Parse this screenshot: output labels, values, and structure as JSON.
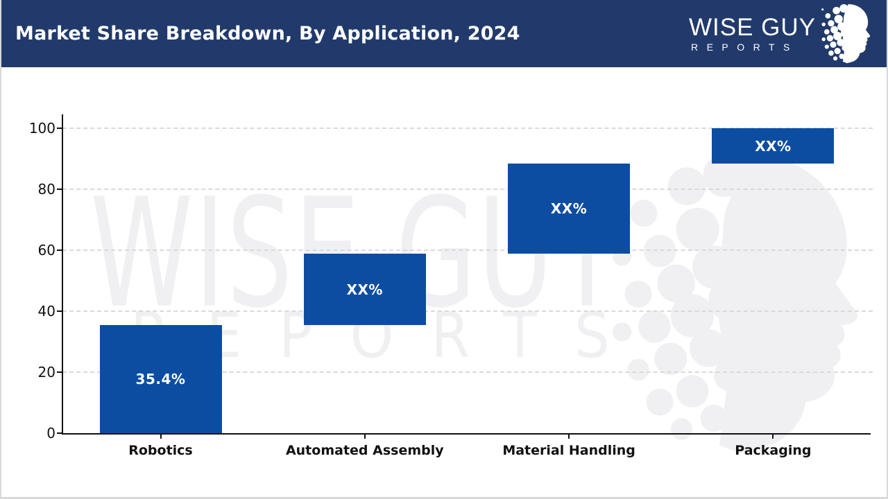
{
  "header": {
    "title": "Market Share Breakdown, By Application, 2024"
  },
  "logo": {
    "wordmark": "WISE GUY",
    "subtitle": "REPORTS"
  },
  "watermark": {
    "wordmark": "WISE GUY",
    "subtitle": "REPORTS"
  },
  "colors": {
    "header_bg": "#213a6b",
    "bar": "#0d4da1",
    "gridline": "#d9d9d9",
    "axis": "#111111",
    "watermark": "#f0f0f2"
  },
  "chart_data": {
    "type": "bar",
    "subtype": "waterfall",
    "title": "Market Share Breakdown, By Application, 2024",
    "categories": [
      "Robotics",
      "Automated Assembly",
      "Material Handling",
      "Packaging"
    ],
    "segments": [
      {
        "category": "Robotics",
        "label": "35.4%",
        "start": 0,
        "end": 35.4
      },
      {
        "category": "Automated Assembly",
        "label": "XX%",
        "start": 35.4,
        "end": 58.8
      },
      {
        "category": "Material Handling",
        "label": "XX%",
        "start": 58.8,
        "end": 88.4
      },
      {
        "category": "Packaging",
        "label": "XX%",
        "start": 88.4,
        "end": 100
      }
    ],
    "xlabel": "",
    "ylabel": "",
    "yticks": [
      0,
      20,
      40,
      60,
      80,
      100
    ],
    "ylim": [
      0,
      105
    ],
    "grid": "horizontal-dashed",
    "legend": "none",
    "bar_color": "#0d4da1"
  }
}
